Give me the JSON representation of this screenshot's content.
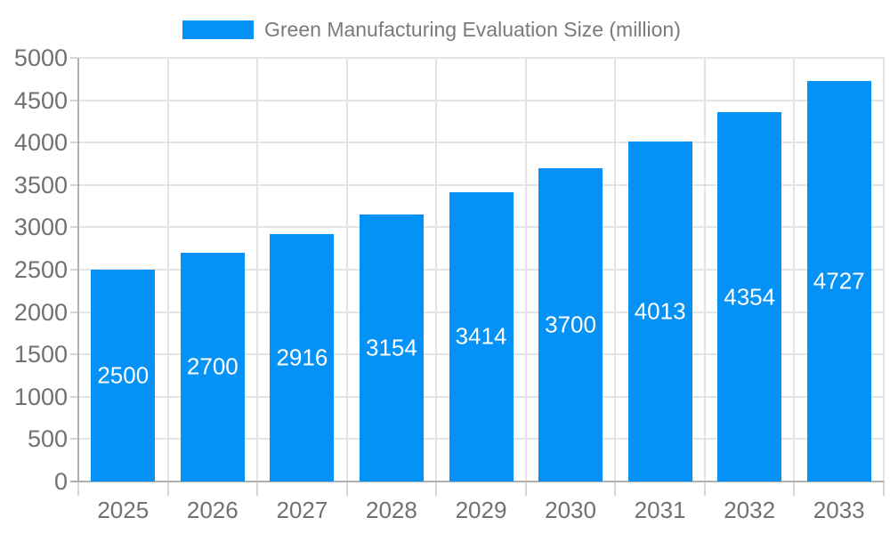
{
  "legend": {
    "label": "Green Manufacturing Evaluation Size (million)"
  },
  "chart_data": {
    "type": "bar",
    "title": "Green Manufacturing Evaluation Size (million)",
    "categories": [
      "2025",
      "2026",
      "2027",
      "2028",
      "2029",
      "2030",
      "2031",
      "2032",
      "2033"
    ],
    "values": [
      2500,
      2700,
      2916,
      3154,
      3414,
      3700,
      4013,
      4354,
      4727
    ],
    "xlabel": "",
    "ylabel": "",
    "ylim": [
      0,
      5000
    ],
    "ytick_interval": 500,
    "yticks": [
      0,
      500,
      1000,
      1500,
      2000,
      2500,
      3000,
      3500,
      4000,
      4500,
      5000
    ],
    "grid": true,
    "legend_position": "top-center",
    "bar_color": "#0492f7",
    "bar_label_color": "#ffffff"
  },
  "colors": {
    "background": "#ffffff",
    "bar": "#0492f7",
    "bar_label": "#ffffff",
    "axis_line": "#b0b0b0",
    "grid_line": "#e4e4e4",
    "tick": "#d6d6d6",
    "axis_label": "#717171",
    "legend_text": "#7a7a7a"
  }
}
